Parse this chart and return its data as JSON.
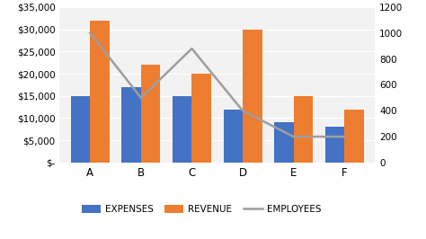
{
  "categories": [
    "A",
    "B",
    "C",
    "D",
    "E",
    "F"
  ],
  "expenses": [
    15000,
    17000,
    15000,
    12000,
    9000,
    8000
  ],
  "revenue": [
    32000,
    22000,
    20000,
    30000,
    15000,
    12000
  ],
  "employees": [
    1000,
    500,
    880,
    400,
    200,
    200
  ],
  "bar_color_expenses": "#4472C4",
  "bar_color_revenue": "#ED7D31",
  "line_color_employees": "#9E9E9E",
  "left_ylim": [
    0,
    35000
  ],
  "right_ylim": [
    0,
    1200
  ],
  "left_yticks": [
    0,
    5000,
    10000,
    15000,
    20000,
    25000,
    30000,
    35000
  ],
  "right_yticks": [
    0,
    200,
    400,
    600,
    800,
    1000,
    1200
  ],
  "legend_labels": [
    "EXPENSES",
    "REVENUE",
    "EMPLOYEES"
  ],
  "background_color": "#ffffff",
  "plot_bg_color": "#f2f2f2",
  "grid_color": "#ffffff",
  "bar_width": 0.38
}
